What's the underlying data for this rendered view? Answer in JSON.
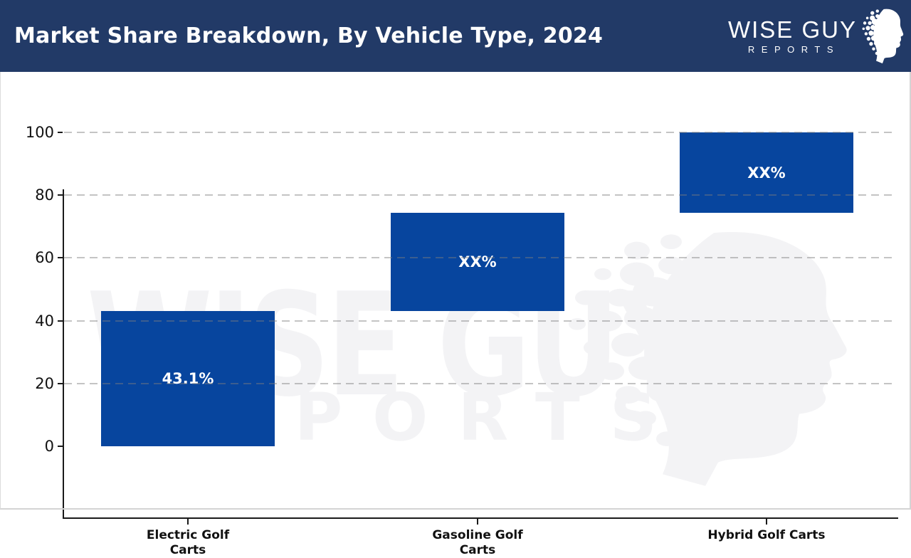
{
  "header": {
    "title": "Market Share Breakdown, By Vehicle Type, 2024",
    "logo": {
      "name": "WISE GUY",
      "subtitle": "REPORTS"
    }
  },
  "watermark": {
    "line1": "WISE GUY",
    "line2": "REPORTS"
  },
  "colors": {
    "header_bg": "#223A67",
    "bar": "#07459E",
    "grid": "#DCDCDC",
    "axis": "#1A1A1A",
    "watermark": "#F3F3F5",
    "value_label": "#FFFFFF"
  },
  "chart_data": {
    "type": "bar",
    "subtype": "waterfall",
    "title": "Market Share Breakdown, By Vehicle Type, 2024",
    "xlabel": "",
    "ylabel": "",
    "categories": [
      [
        "Electric Golf",
        "Carts"
      ],
      [
        "Gasoline Golf",
        "Carts"
      ],
      [
        "Hybrid Golf Carts"
      ]
    ],
    "series": [
      {
        "name": "Electric Golf Carts",
        "start": 0,
        "end": 43.1,
        "label": "43.1%"
      },
      {
        "name": "Gasoline Golf Carts",
        "start": 43.1,
        "end": 74.3,
        "label": "XX%"
      },
      {
        "name": "Hybrid Golf Carts",
        "start": 74.3,
        "end": 100,
        "label": "XX%"
      }
    ],
    "yticks": [
      0,
      20,
      40,
      60,
      80,
      100
    ],
    "ylim": [
      0,
      105
    ],
    "grid": "horizontal-dashed",
    "legend": "none"
  }
}
